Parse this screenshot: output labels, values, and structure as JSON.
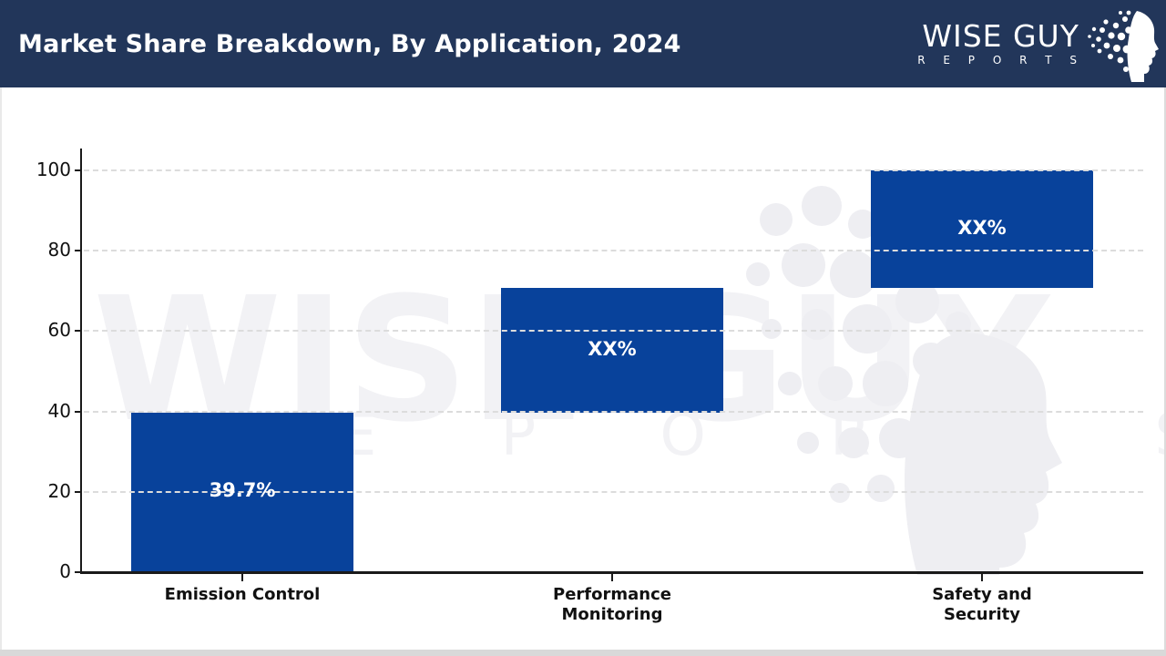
{
  "header": {
    "title": "Market Share Breakdown, By Application, 2024",
    "logo": {
      "line1": "WISE GUY",
      "line2": "R E P O R T S"
    }
  },
  "watermark": {
    "line1": "WISE GUY",
    "line2": "R E P O R T S"
  },
  "chart_data": {
    "type": "bar",
    "subtype": "waterfall-stacked-percent",
    "title": "Market Share Breakdown, By Application, 2024",
    "xlabel": "",
    "ylabel": "",
    "categories": [
      "Emission Control",
      "Performance\nMonitoring",
      "Safety and\nSecurity"
    ],
    "segments": [
      {
        "category": "Emission Control",
        "label": "39.7%",
        "start": 0,
        "end": 39.7
      },
      {
        "category": "Performance Monitoring",
        "label": "XX%",
        "start": 39.7,
        "end": 70.7
      },
      {
        "category": "Safety and Security",
        "label": "XX%",
        "start": 70.7,
        "end": 100
      }
    ],
    "ylim": [
      0,
      105
    ],
    "yticks": [
      0,
      20,
      40,
      60,
      80,
      100
    ],
    "grid": "dashed-horizontal",
    "legend": "none",
    "colors": {
      "bar": "#08429B",
      "grid": "#dcdcdc",
      "axis": "#1a1a1a",
      "value_label": "#ffffff",
      "tick_label": "#111111",
      "header_bg": "#22365A",
      "watermark": "#f2f2f5"
    }
  }
}
